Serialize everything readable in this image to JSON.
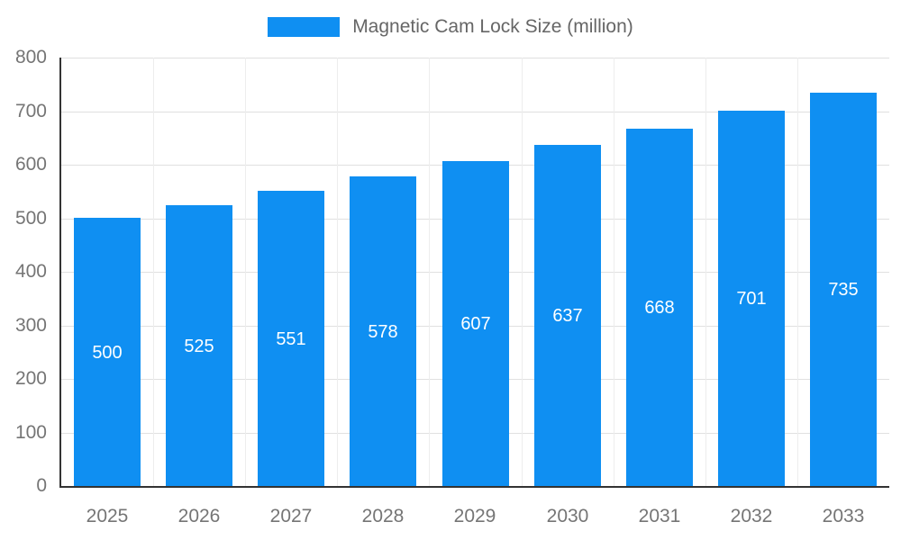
{
  "chart_data": {
    "type": "bar",
    "title": "Magnetic Cam Lock Size (million)",
    "categories": [
      "2025",
      "2026",
      "2027",
      "2028",
      "2029",
      "2030",
      "2031",
      "2032",
      "2033"
    ],
    "values": [
      500,
      525,
      551,
      578,
      607,
      637,
      668,
      701,
      735
    ],
    "xlabel": "",
    "ylabel": "",
    "ylim": [
      0,
      800
    ],
    "yticks": [
      0,
      100,
      200,
      300,
      400,
      500,
      600,
      700,
      800
    ],
    "grid": true,
    "legend_position": "top-center",
    "bar_color": "#0f8ff2",
    "axis_line_color": "#333333",
    "gridline_color": "#e0e0e0",
    "axis_text_color": "#757575",
    "legend_text_color": "#666666",
    "value_label_color": "#ffffff"
  }
}
